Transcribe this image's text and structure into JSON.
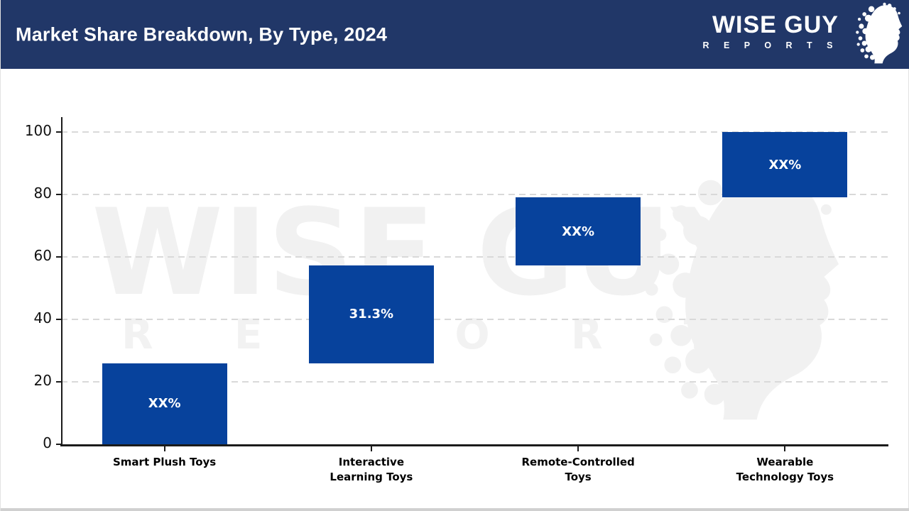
{
  "header": {
    "title": "Market Share Breakdown, By Type, 2024",
    "bg_color": "#213768",
    "brand": {
      "name_line": "WISE GUY",
      "sub_line": "REPORTS",
      "sub_line_spaced": "R E P O R T S"
    }
  },
  "watermark": {
    "name_line": "WISE GUY",
    "sub_line_spaced": "R E P O R T S"
  },
  "chart_data": {
    "type": "bar",
    "variant": "floating-segment-bars",
    "title": "Market Share Breakdown, By Type, 2024",
    "categories": [
      "Smart Plush Toys",
      "Interactive\nLearning Toys",
      "Remote-Controlled\nToys",
      "Wearable\nTechnology Toys"
    ],
    "bars": [
      {
        "category": "Smart Plush Toys",
        "start": 0,
        "end": 26,
        "value_label": "XX%"
      },
      {
        "category": "Interactive\nLearning Toys",
        "start": 26,
        "end": 57.3,
        "value_label": "31.3%"
      },
      {
        "category": "Remote-Controlled\nToys",
        "start": 57.3,
        "end": 79,
        "value_label": "XX%"
      },
      {
        "category": "Wearable\nTechnology Toys",
        "start": 79,
        "end": 100,
        "value_label": "XX%"
      }
    ],
    "yticks": [
      0,
      20,
      40,
      60,
      80,
      100
    ],
    "ylim": [
      0,
      105
    ],
    "xlabel": "",
    "ylabel": "",
    "grid": "horizontal-dashed",
    "legend": "none",
    "bar_color": "#07429c",
    "value_label_color": "#ffffff",
    "axis_color": "#1b1b1b",
    "gridline_color": "#d9d9d9"
  }
}
